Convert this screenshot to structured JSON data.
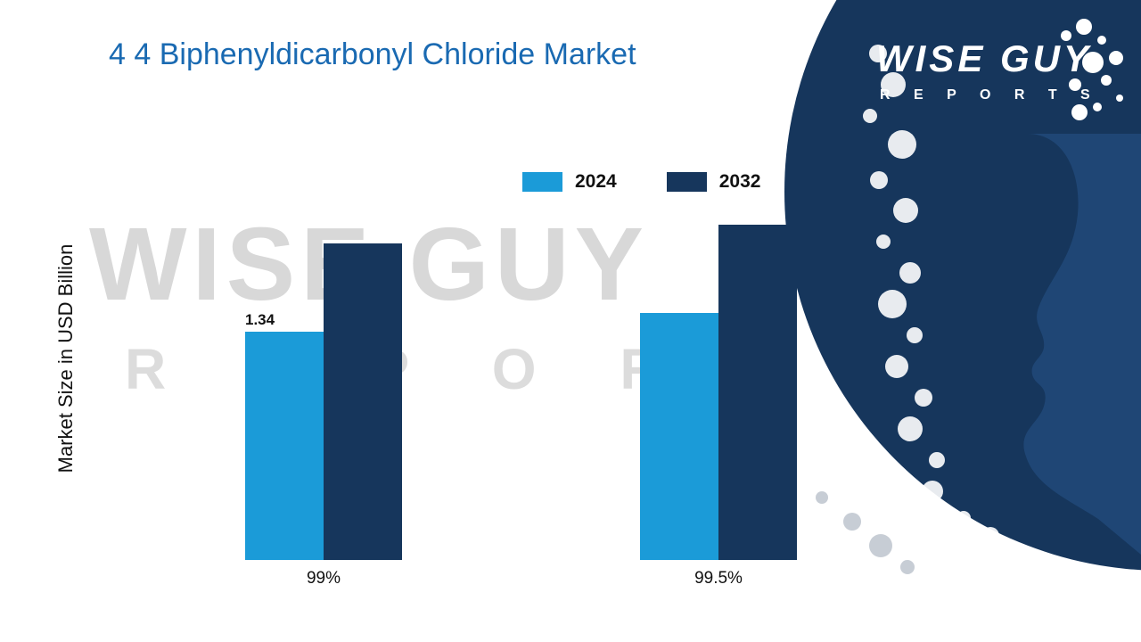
{
  "title": "4 4 Biphenyldicarbonyl Chloride Market",
  "logo": {
    "name": "WISE GUY",
    "tagline": "R E P O R T S"
  },
  "watermark": {
    "line1": "WISE GUY",
    "line2": "R E P O R T"
  },
  "chart_data": {
    "type": "bar",
    "title": "4 4 Biphenyldicarbonyl Chloride Market",
    "categories": [
      "99%",
      "99.5%"
    ],
    "series": [
      {
        "name": "2024",
        "color": "#1b9bd8",
        "values": [
          1.34,
          1.45
        ],
        "labels": [
          "1.34",
          ""
        ]
      },
      {
        "name": "2032",
        "color": "#16365c",
        "values": [
          1.86,
          1.97
        ],
        "labels": [
          "",
          ""
        ]
      }
    ],
    "xlabel": "",
    "ylabel": "Market Size in USD Billion",
    "ylim": [
      0,
      2.2
    ],
    "grid": false,
    "legend_position": "top-center",
    "value_labels_shown": [
      "1.34"
    ]
  },
  "colors": {
    "title_blue": "#1a6ab2",
    "bar_light_blue": "#1b9bd8",
    "bar_navy": "#16365c",
    "watermark_gray": "#d8d8d8",
    "logo_background_navy": "#16365c"
  }
}
